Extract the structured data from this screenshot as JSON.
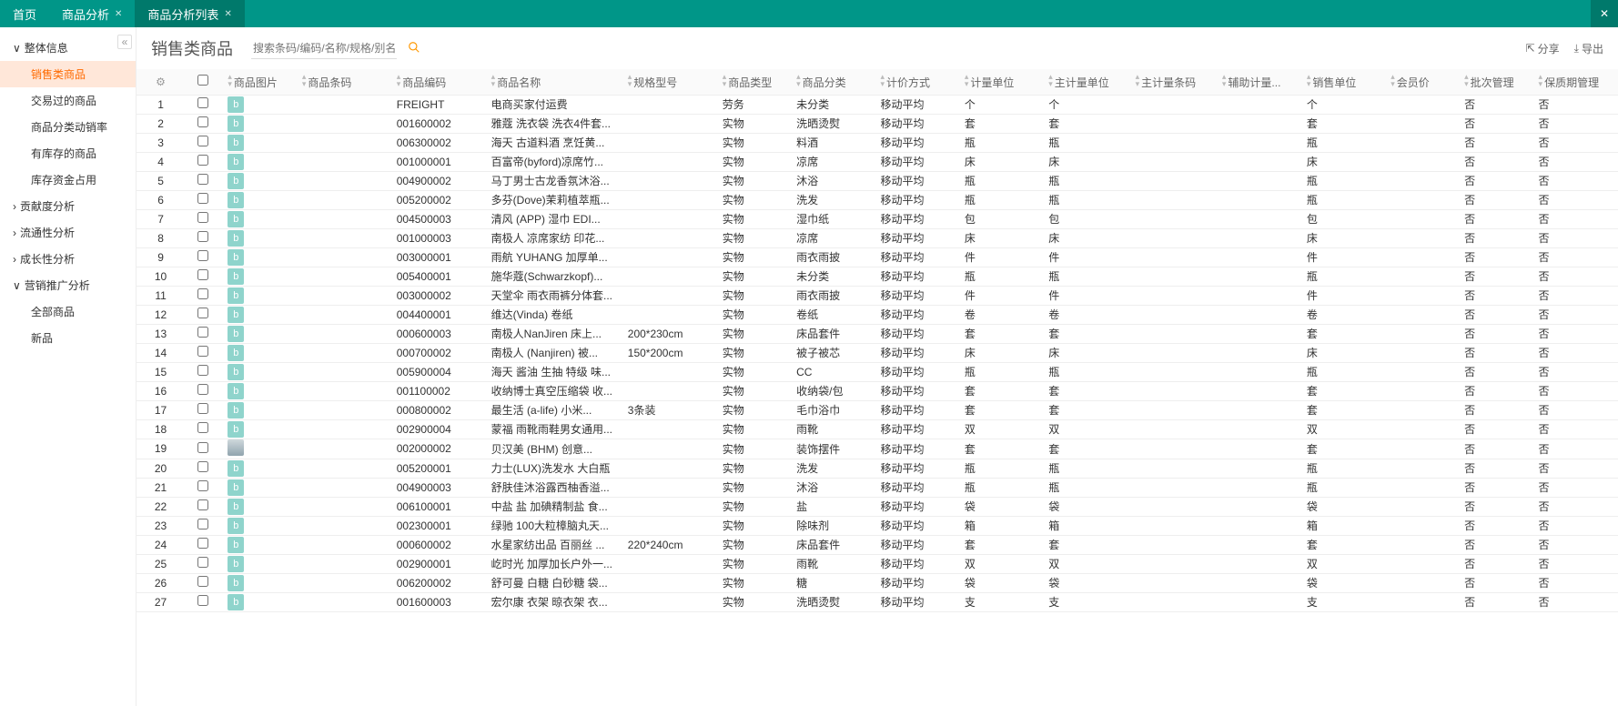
{
  "tabs": [
    {
      "label": "首页",
      "active": false,
      "closable": false
    },
    {
      "label": "商品分析",
      "active": false,
      "closable": true
    },
    {
      "label": "商品分析列表",
      "active": true,
      "closable": true
    }
  ],
  "sidebar": {
    "groups": [
      {
        "title": "整体信息",
        "expanded": true,
        "items": [
          {
            "label": "销售类商品",
            "active": true
          },
          {
            "label": "交易过的商品",
            "active": false
          },
          {
            "label": "商品分类动销率",
            "active": false
          },
          {
            "label": "有库存的商品",
            "active": false
          },
          {
            "label": "库存资金占用",
            "active": false
          }
        ]
      },
      {
        "title": "贡献度分析",
        "expanded": false,
        "items": []
      },
      {
        "title": "流通性分析",
        "expanded": false,
        "items": []
      },
      {
        "title": "成长性分析",
        "expanded": false,
        "items": []
      },
      {
        "title": "营销推广分析",
        "expanded": true,
        "items": [
          {
            "label": "全部商品",
            "active": false
          },
          {
            "label": "新品",
            "active": false
          }
        ]
      }
    ]
  },
  "page": {
    "title": "销售类商品",
    "search_placeholder": "搜索条码/编码/名称/规格/别名",
    "share": "分享",
    "export": "导出"
  },
  "columns": [
    "",
    "",
    "商品图片",
    "商品条码",
    "商品编码",
    "商品名称",
    "规格型号",
    "商品类型",
    "商品分类",
    "计价方式",
    "计量单位",
    "主计量单位",
    "主计量条码",
    "辅助计量...",
    "销售单位",
    "会员价",
    "批次管理",
    "保质期管理"
  ],
  "rows": [
    {
      "idx": 1,
      "code": "FREIGHT",
      "name": "电商买家付运费",
      "spec": "",
      "type": "劳务",
      "cat": "未分类",
      "price": "移动平均",
      "unit": "个",
      "mainunit": "个",
      "saleunit": "个",
      "batch": "否",
      "shelf": "否"
    },
    {
      "idx": 2,
      "code": "001600002",
      "name": "雅蔻 洗衣袋 洗衣4件套...",
      "spec": "",
      "type": "实物",
      "cat": "洗晒烫熨",
      "price": "移动平均",
      "unit": "套",
      "mainunit": "套",
      "saleunit": "套",
      "batch": "否",
      "shelf": "否"
    },
    {
      "idx": 3,
      "code": "006300002",
      "name": "海天 古道料酒 烹饪黄...",
      "spec": "",
      "type": "实物",
      "cat": "料酒",
      "price": "移动平均",
      "unit": "瓶",
      "mainunit": "瓶",
      "saleunit": "瓶",
      "batch": "否",
      "shelf": "否"
    },
    {
      "idx": 4,
      "code": "001000001",
      "name": "百富帝(byford)凉席竹...",
      "spec": "",
      "type": "实物",
      "cat": "凉席",
      "price": "移动平均",
      "unit": "床",
      "mainunit": "床",
      "saleunit": "床",
      "batch": "否",
      "shelf": "否"
    },
    {
      "idx": 5,
      "code": "004900002",
      "name": "马丁男士古龙香氛沐浴...",
      "spec": "",
      "type": "实物",
      "cat": "沐浴",
      "price": "移动平均",
      "unit": "瓶",
      "mainunit": "瓶",
      "saleunit": "瓶",
      "batch": "否",
      "shelf": "否"
    },
    {
      "idx": 6,
      "code": "005200002",
      "name": "多芬(Dove)茉莉植萃瓶...",
      "spec": "",
      "type": "实物",
      "cat": "洗发",
      "price": "移动平均",
      "unit": "瓶",
      "mainunit": "瓶",
      "saleunit": "瓶",
      "batch": "否",
      "shelf": "否"
    },
    {
      "idx": 7,
      "code": "004500003",
      "name": "清风 (APP) 湿巾 EDI...",
      "spec": "",
      "type": "实物",
      "cat": "湿巾纸",
      "price": "移动平均",
      "unit": "包",
      "mainunit": "包",
      "saleunit": "包",
      "batch": "否",
      "shelf": "否"
    },
    {
      "idx": 8,
      "code": "001000003",
      "name": "南极人 凉席家纺 印花...",
      "spec": "",
      "type": "实物",
      "cat": "凉席",
      "price": "移动平均",
      "unit": "床",
      "mainunit": "床",
      "saleunit": "床",
      "batch": "否",
      "shelf": "否"
    },
    {
      "idx": 9,
      "code": "003000001",
      "name": "雨航 YUHANG 加厚单...",
      "spec": "",
      "type": "实物",
      "cat": "雨衣雨披",
      "price": "移动平均",
      "unit": "件",
      "mainunit": "件",
      "saleunit": "件",
      "batch": "否",
      "shelf": "否"
    },
    {
      "idx": 10,
      "code": "005400001",
      "name": "施华蔻(Schwarzkopf)...",
      "spec": "",
      "type": "实物",
      "cat": "未分类",
      "price": "移动平均",
      "unit": "瓶",
      "mainunit": "瓶",
      "saleunit": "瓶",
      "batch": "否",
      "shelf": "否"
    },
    {
      "idx": 11,
      "code": "003000002",
      "name": "天堂伞 雨衣雨裤分体套...",
      "spec": "",
      "type": "实物",
      "cat": "雨衣雨披",
      "price": "移动平均",
      "unit": "件",
      "mainunit": "件",
      "saleunit": "件",
      "batch": "否",
      "shelf": "否"
    },
    {
      "idx": 12,
      "code": "004400001",
      "name": "维达(Vinda) 卷纸",
      "spec": "",
      "type": "实物",
      "cat": "卷纸",
      "price": "移动平均",
      "unit": "卷",
      "mainunit": "卷",
      "saleunit": "卷",
      "batch": "否",
      "shelf": "否"
    },
    {
      "idx": 13,
      "code": "000600003",
      "name": "南极人NanJiren 床上...",
      "spec": "200*230cm",
      "type": "实物",
      "cat": "床品套件",
      "price": "移动平均",
      "unit": "套",
      "mainunit": "套",
      "saleunit": "套",
      "batch": "否",
      "shelf": "否"
    },
    {
      "idx": 14,
      "code": "000700002",
      "name": "南极人 (Nanjiren) 被...",
      "spec": "150*200cm",
      "type": "实物",
      "cat": "被子被芯",
      "price": "移动平均",
      "unit": "床",
      "mainunit": "床",
      "saleunit": "床",
      "batch": "否",
      "shelf": "否"
    },
    {
      "idx": 15,
      "code": "005900004",
      "name": "海天 酱油 生抽 特级 味...",
      "spec": "",
      "type": "实物",
      "cat": "CC",
      "price": "移动平均",
      "unit": "瓶",
      "mainunit": "瓶",
      "saleunit": "瓶",
      "batch": "否",
      "shelf": "否"
    },
    {
      "idx": 16,
      "code": "001100002",
      "name": "收纳博士真空压缩袋 收...",
      "spec": "",
      "type": "实物",
      "cat": "收纳袋/包",
      "price": "移动平均",
      "unit": "套",
      "mainunit": "套",
      "saleunit": "套",
      "batch": "否",
      "shelf": "否"
    },
    {
      "idx": 17,
      "code": "000800002",
      "name": "最生活 (a-life) 小米...",
      "spec": "3条装",
      "type": "实物",
      "cat": "毛巾浴巾",
      "price": "移动平均",
      "unit": "套",
      "mainunit": "套",
      "saleunit": "套",
      "batch": "否",
      "shelf": "否"
    },
    {
      "idx": 18,
      "code": "002900004",
      "name": "蒙福 雨靴雨鞋男女通用...",
      "spec": "",
      "type": "实物",
      "cat": "雨靴",
      "price": "移动平均",
      "unit": "双",
      "mainunit": "双",
      "saleunit": "双",
      "batch": "否",
      "shelf": "否"
    },
    {
      "idx": 19,
      "code": "002000002",
      "name": "贝汉美 (BHM) 创意...",
      "spec": "",
      "type": "实物",
      "cat": "装饰摆件",
      "price": "移动平均",
      "unit": "套",
      "mainunit": "套",
      "saleunit": "套",
      "batch": "否",
      "shelf": "否",
      "realimg": true
    },
    {
      "idx": 20,
      "code": "005200001",
      "name": "力士(LUX)洗发水 大白瓶",
      "spec": "",
      "type": "实物",
      "cat": "洗发",
      "price": "移动平均",
      "unit": "瓶",
      "mainunit": "瓶",
      "saleunit": "瓶",
      "batch": "否",
      "shelf": "否"
    },
    {
      "idx": 21,
      "code": "004900003",
      "name": "舒肤佳沐浴露西柚香溢...",
      "spec": "",
      "type": "实物",
      "cat": "沐浴",
      "price": "移动平均",
      "unit": "瓶",
      "mainunit": "瓶",
      "saleunit": "瓶",
      "batch": "否",
      "shelf": "否"
    },
    {
      "idx": 22,
      "code": "006100001",
      "name": "中盐 盐 加碘精制盐 食...",
      "spec": "",
      "type": "实物",
      "cat": "盐",
      "price": "移动平均",
      "unit": "袋",
      "mainunit": "袋",
      "saleunit": "袋",
      "batch": "否",
      "shelf": "否"
    },
    {
      "idx": 23,
      "code": "002300001",
      "name": "绿驰 100大粒樟脑丸天...",
      "spec": "",
      "type": "实物",
      "cat": "除味剂",
      "price": "移动平均",
      "unit": "箱",
      "mainunit": "箱",
      "saleunit": "箱",
      "batch": "否",
      "shelf": "否"
    },
    {
      "idx": 24,
      "code": "000600002",
      "name": "水星家纺出品 百丽丝 ...",
      "spec": "220*240cm",
      "type": "实物",
      "cat": "床品套件",
      "price": "移动平均",
      "unit": "套",
      "mainunit": "套",
      "saleunit": "套",
      "batch": "否",
      "shelf": "否"
    },
    {
      "idx": 25,
      "code": "002900001",
      "name": "屹时光 加厚加长户外一...",
      "spec": "",
      "type": "实物",
      "cat": "雨靴",
      "price": "移动平均",
      "unit": "双",
      "mainunit": "双",
      "saleunit": "双",
      "batch": "否",
      "shelf": "否"
    },
    {
      "idx": 26,
      "code": "006200002",
      "name": "舒可曼 白糖 白砂糖 袋...",
      "spec": "",
      "type": "实物",
      "cat": "糖",
      "price": "移动平均",
      "unit": "袋",
      "mainunit": "袋",
      "saleunit": "袋",
      "batch": "否",
      "shelf": "否"
    },
    {
      "idx": 27,
      "code": "001600003",
      "name": "宏尔康 衣架 晾衣架 衣...",
      "spec": "",
      "type": "实物",
      "cat": "洗晒烫熨",
      "price": "移动平均",
      "unit": "支",
      "mainunit": "支",
      "saleunit": "支",
      "batch": "否",
      "shelf": "否"
    }
  ]
}
